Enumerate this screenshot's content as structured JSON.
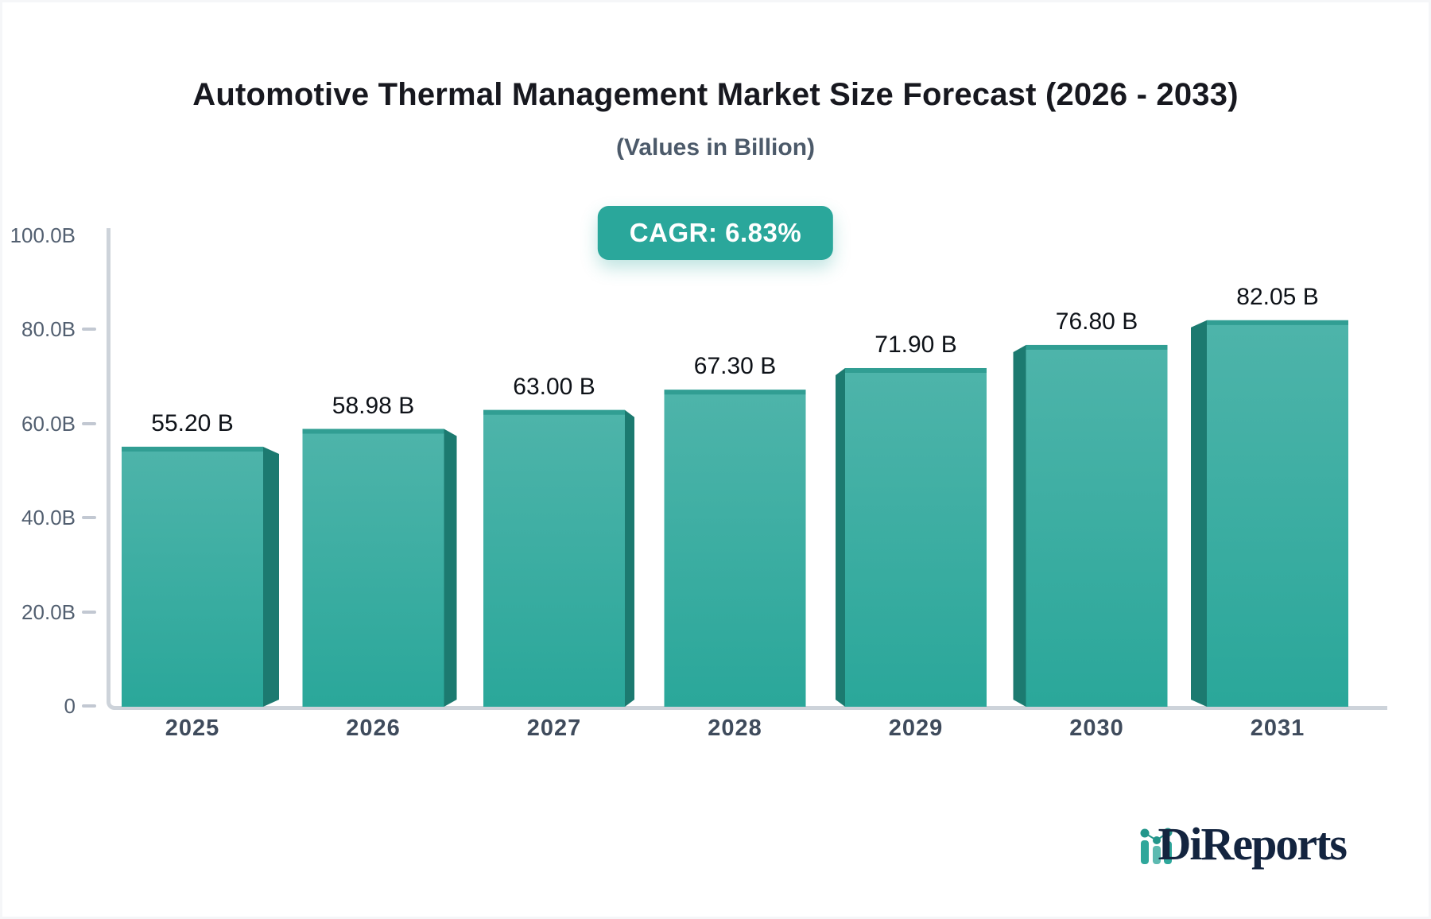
{
  "header": {
    "title": "Automotive Thermal Management Market Size Forecast (2026 - 2033)",
    "subtitle": "(Values in Billion)",
    "cagr_badge": "CAGR: 6.83%"
  },
  "chart_data": {
    "type": "bar",
    "title": "Automotive Thermal Management Market Size Forecast (2026 - 2033)",
    "subtitle": "(Values in Billion)",
    "categories": [
      "2025",
      "2026",
      "2027",
      "2028",
      "2029",
      "2030",
      "2031"
    ],
    "values": [
      55.2,
      58.98,
      63.0,
      67.3,
      71.9,
      76.8,
      82.05
    ],
    "bar_labels": [
      "55.20 B",
      "58.98 B",
      "63.00 B",
      "67.30 B",
      "71.90 B",
      "76.80 B",
      "82.05 B"
    ],
    "xlabel": "",
    "ylabel": "",
    "ylim": [
      0,
      100
    ],
    "grid": "off",
    "legend": "none",
    "yticks": [
      {
        "label": "100.0B",
        "value": 100,
        "tick": false
      },
      {
        "label": "80.0B",
        "value": 80,
        "tick": true
      },
      {
        "label": "60.0B",
        "value": 60,
        "tick": true
      },
      {
        "label": "40.0B",
        "value": 40,
        "tick": true
      },
      {
        "label": "20.0B",
        "value": 20,
        "tick": true
      },
      {
        "label": "0",
        "value": 0,
        "tick": true
      }
    ],
    "colors": {
      "accent": "#2aa79b",
      "front_top": "#4eb4aa",
      "front_bottom": "#2aa79a",
      "top_face": "#319e93",
      "side_face": "#1c7a70",
      "axis_line": "#cdd3da",
      "tick_mark": "#c2c8d2",
      "axis_text": "#525f70",
      "value_text": "#0e1218",
      "category_text": "#3f4b5c"
    }
  },
  "footer": {
    "brand": "DiReports",
    "logo_icon": "mini-bar-chart-icon"
  }
}
